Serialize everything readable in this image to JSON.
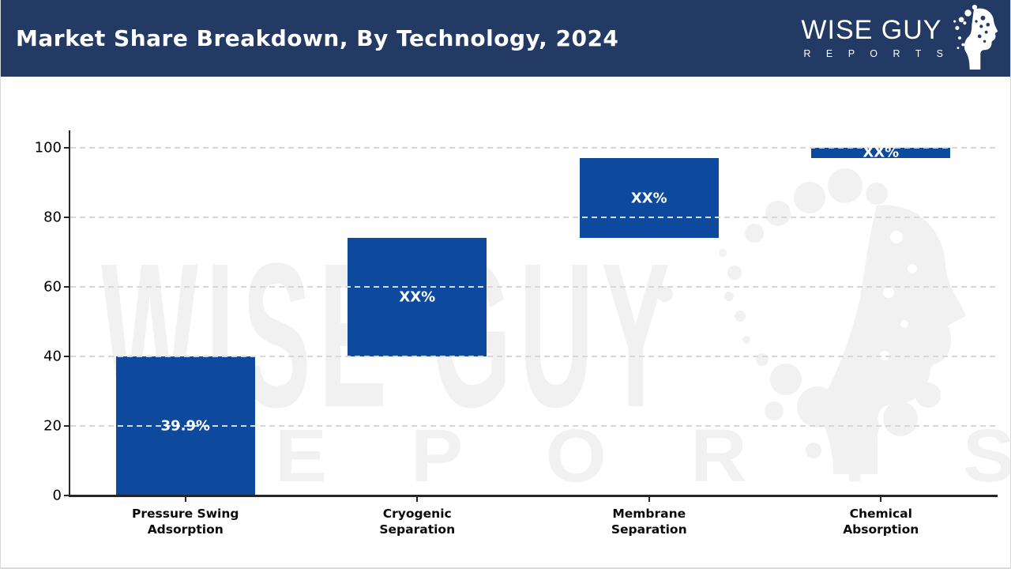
{
  "page": {
    "bg": "#ffffff",
    "border_color": "#d9d9d9"
  },
  "header": {
    "bg_color": "#223a64",
    "title": "Market Share Breakdown, By Technology, 2024",
    "title_color": "#ffffff",
    "logo": {
      "line1": "WISE GUY",
      "line2": "R E P O R T S"
    }
  },
  "watermark": {
    "line1": "WISE GUY",
    "line2": "R E P O R T S",
    "color": "#f1f1f1"
  },
  "chart_data": {
    "type": "bar",
    "subtype": "waterfall",
    "title": "Market Share Breakdown, By Technology, 2024",
    "categories": [
      {
        "line1": "Pressure Swing",
        "line2": "Adsorption"
      },
      {
        "line1": "Cryogenic",
        "line2": "Separation"
      },
      {
        "line1": "Membrane",
        "line2": "Separation"
      },
      {
        "line1": "Chemical",
        "line2": "Absorption"
      }
    ],
    "segments": [
      {
        "category": "Pressure Swing Adsorption",
        "start": 0,
        "end": 39.9,
        "label": "39.9%"
      },
      {
        "category": "Cryogenic Separation",
        "start": 39.9,
        "end": 74.0,
        "label": "XX%"
      },
      {
        "category": "Membrane Separation",
        "start": 74.0,
        "end": 96.9,
        "label": "XX%"
      },
      {
        "category": "Chemical Absorption",
        "start": 96.9,
        "end": 100,
        "label": "XX%"
      }
    ],
    "ylim": [
      0,
      105
    ],
    "yticks": [
      0,
      20,
      40,
      60,
      80,
      100
    ],
    "ytick_labels": [
      "0",
      "20",
      "40",
      "60",
      "80",
      "100"
    ],
    "grid": {
      "axis": "y",
      "style": "dashed",
      "color": "#d8d8d8",
      "drawn_above_bars": true
    },
    "legend": "none",
    "bar_color": "#0d4a9e",
    "bar_label_color": "#ffffff",
    "axis_color": "#262626",
    "tick_label_color": "#000000"
  }
}
